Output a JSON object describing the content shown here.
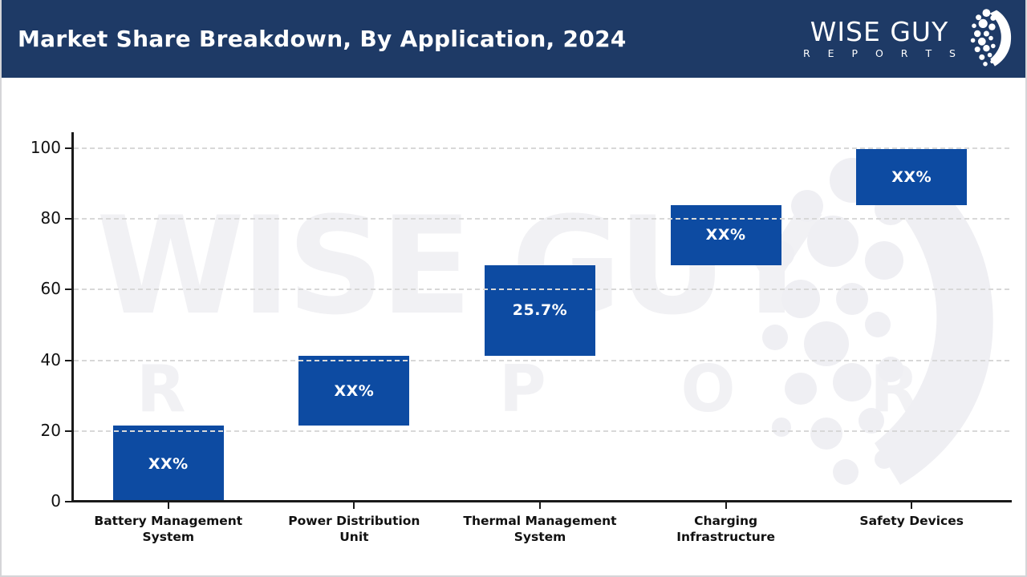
{
  "header": {
    "title": "Market Share Breakdown, By Application, 2024"
  },
  "logo": {
    "name": "WISE GUY",
    "subtitle": "R E P O R T S"
  },
  "watermark": {
    "line1": "WISE GUY",
    "line2": "R E P O R T S"
  },
  "chart_data": {
    "type": "bar",
    "variant": "floating-waterfall",
    "title": "Market Share Breakdown, By Application, 2024",
    "xlabel": "",
    "ylabel": "",
    "ylim": [
      0,
      105
    ],
    "yticks": [
      0,
      20,
      40,
      60,
      80,
      100
    ],
    "grid": "horizontal-dashed",
    "legend": "none",
    "bar_color": "#0d4ba2",
    "bar_label_color": "#ffffff",
    "categories": [
      [
        "Battery Management",
        "System"
      ],
      [
        "Power Distribution",
        "Unit"
      ],
      [
        "Thermal Management",
        "System"
      ],
      [
        "Charging",
        "Infrastructure"
      ],
      [
        "Safety Devices"
      ]
    ],
    "series": [
      {
        "name": "Market Share",
        "segments": [
          {
            "category": "Battery Management System",
            "start": 0,
            "end": 21.5,
            "label": "XX%"
          },
          {
            "category": "Power Distribution Unit",
            "start": 21.5,
            "end": 41.3,
            "label": "XX%"
          },
          {
            "category": "Thermal Management System",
            "start": 41.3,
            "end": 67.0,
            "label": "25.7%"
          },
          {
            "category": "Charging Infrastructure",
            "start": 67.0,
            "end": 84.0,
            "label": "XX%"
          },
          {
            "category": "Safety Devices",
            "start": 84.0,
            "end": 99.7,
            "label": "XX%"
          }
        ]
      }
    ],
    "colors": {
      "header_background": "#1e3a66",
      "bar": "#0d4ba2",
      "gridline": "#d8d8d8",
      "axis": "#1a1a1a",
      "watermark": "#f1f1f4",
      "plot_background": "#ffffff"
    }
  }
}
